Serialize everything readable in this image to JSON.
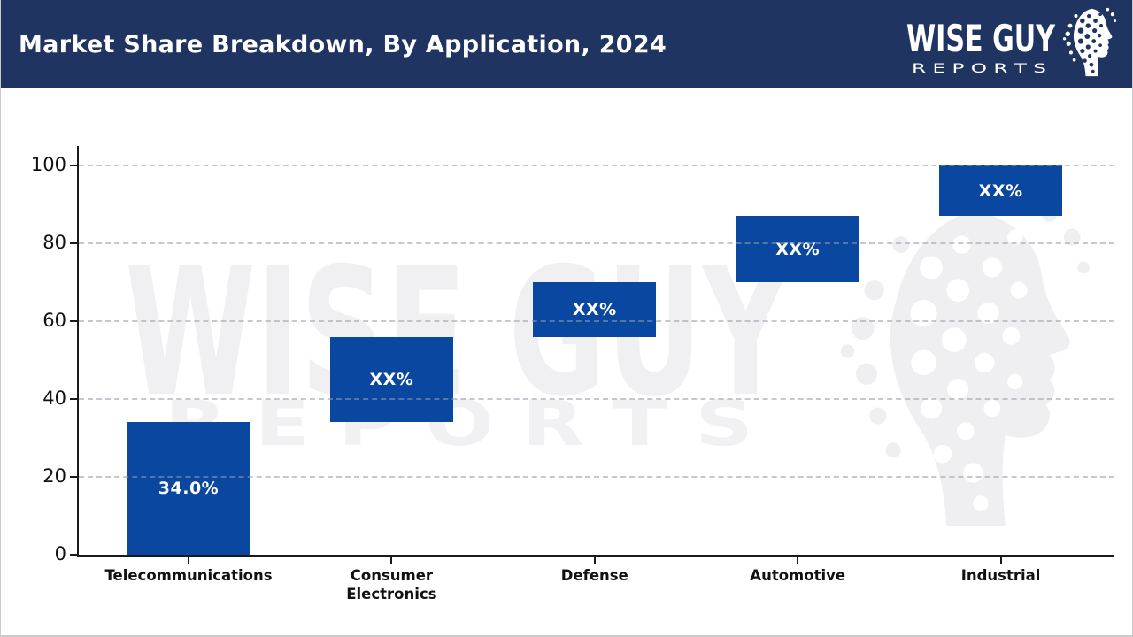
{
  "header": {
    "title": "Market Share Breakdown, By Application, 2024",
    "background_color": "#203462",
    "logo": {
      "line1": "WISE GUY",
      "line2": "R E P O R T S"
    }
  },
  "watermark": {
    "line1": "WISE GUY",
    "line2": "R E P O R T S"
  },
  "chart_data": {
    "type": "bar",
    "subtype": "waterfall",
    "title": "Market Share Breakdown, By Application, 2024",
    "xlabel": "",
    "ylabel": "",
    "ylim": [
      0,
      100
    ],
    "yticks": [
      0,
      20,
      40,
      60,
      80,
      100
    ],
    "grid": "horizontal-dashed",
    "legend": "none",
    "bars": [
      {
        "category": "Telecommunications",
        "category_lines": [
          "Telecommunications"
        ],
        "start": 0,
        "end": 34,
        "label": "34.0%"
      },
      {
        "category": "Consumer Electronics",
        "category_lines": [
          "Consumer",
          "Electronics"
        ],
        "start": 34,
        "end": 56,
        "label": "XX%"
      },
      {
        "category": "Defense",
        "category_lines": [
          "Defense"
        ],
        "start": 56,
        "end": 70,
        "label": "XX%"
      },
      {
        "category": "Automotive",
        "category_lines": [
          "Automotive"
        ],
        "start": 70,
        "end": 87,
        "label": "XX%"
      },
      {
        "category": "Industrial",
        "category_lines": [
          "Industrial"
        ],
        "start": 87,
        "end": 100,
        "label": "XX%"
      }
    ],
    "colors": {
      "bar": "#0a47a0",
      "value_label": "#ffffff",
      "axis": "#1a1a1a",
      "gridline": "#9ba0ac",
      "watermark": "#f0f0f2"
    }
  }
}
